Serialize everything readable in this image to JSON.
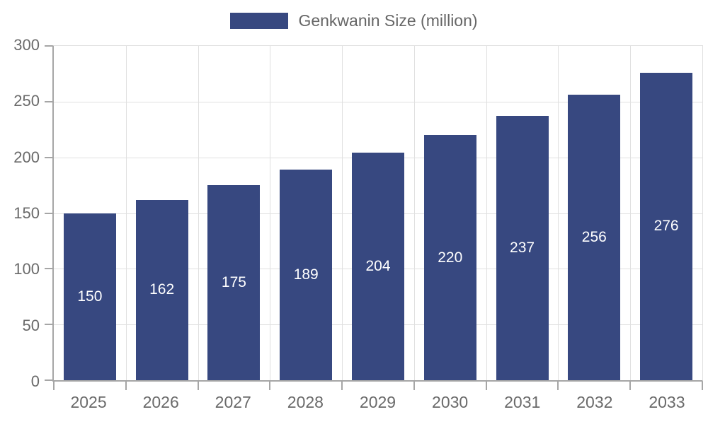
{
  "legend": {
    "label": "Genkwanin Size (million)"
  },
  "chart_data": {
    "type": "bar",
    "categories": [
      "2025",
      "2026",
      "2027",
      "2028",
      "2029",
      "2030",
      "2031",
      "2032",
      "2033"
    ],
    "values": [
      150,
      162,
      175,
      189,
      204,
      220,
      237,
      256,
      276
    ],
    "series_name": "Genkwanin Size (million)",
    "title": "",
    "xlabel": "",
    "ylabel": "",
    "ylim": [
      0,
      300
    ],
    "yticks": [
      0,
      50,
      100,
      150,
      200,
      250,
      300
    ],
    "grid": true,
    "legend_position": "top-center",
    "bar_labels_inside": true,
    "colors": {
      "bar": "#374880",
      "bar_label": "#ffffff",
      "grid": "#e0e0e0",
      "axis": "#a6a6a6",
      "tick_text": "#6a6a6a",
      "legend_text": "#666666",
      "background": "#ffffff"
    }
  }
}
